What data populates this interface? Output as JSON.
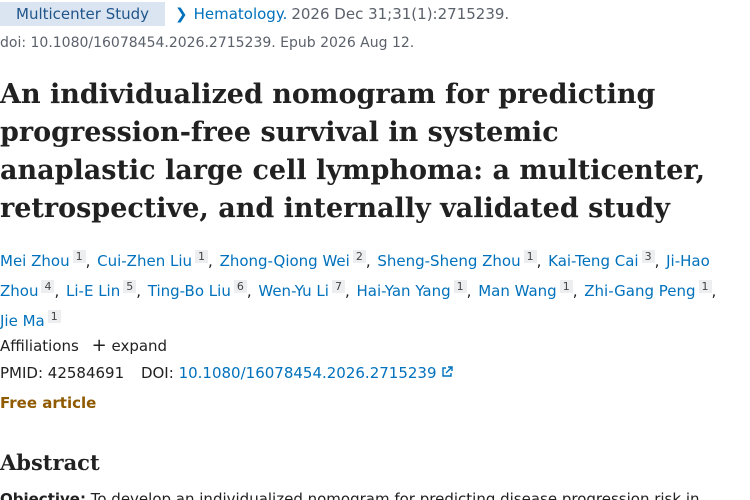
{
  "header": {
    "publication_type": "Multicenter Study",
    "journal": "Hematology.",
    "citation": "2026 Dec 31;31(1):2715239.",
    "doi_line": "doi: 10.1080/16078454.2026.2715239. Epub 2026 Aug 12."
  },
  "title": "An individualized nomogram for predicting progression-free survival in systemic anaplastic large cell lymphoma: a multicenter, retrospective, and internally validated study",
  "authors": [
    {
      "name": "Mei Zhou",
      "aff": 1
    },
    {
      "name": "Cui-Zhen Liu",
      "aff": 1
    },
    {
      "name": "Zhong-Qiong Wei",
      "aff": 2
    },
    {
      "name": "Sheng-Sheng Zhou",
      "aff": 1
    },
    {
      "name": "Kai-Teng Cai",
      "aff": 3
    },
    {
      "name": "Ji-Hao Zhou",
      "aff": 4
    },
    {
      "name": "Li-E Lin",
      "aff": 5
    },
    {
      "name": "Ting-Bo Liu",
      "aff": 6
    },
    {
      "name": "Wen-Yu Li",
      "aff": 7
    },
    {
      "name": "Hai-Yan Yang",
      "aff": 1
    },
    {
      "name": "Man Wang",
      "aff": 1
    },
    {
      "name": "Zhi-Gang Peng",
      "aff": 1
    },
    {
      "name": "Jie Ma",
      "aff": 1
    }
  ],
  "affiliations": {
    "label": "Affiliations",
    "expand": "expand"
  },
  "identifiers": {
    "pmid_label": "PMID:",
    "pmid": "42584691",
    "doi_label": "DOI:",
    "doi": "10.1080/16078454.2026.2715239"
  },
  "free_article": "Free article",
  "abstract": {
    "heading": "Abstract",
    "objective_label": "Objective:",
    "objective": "To develop an individualized nomogram for predicting disease progression risk in"
  }
}
